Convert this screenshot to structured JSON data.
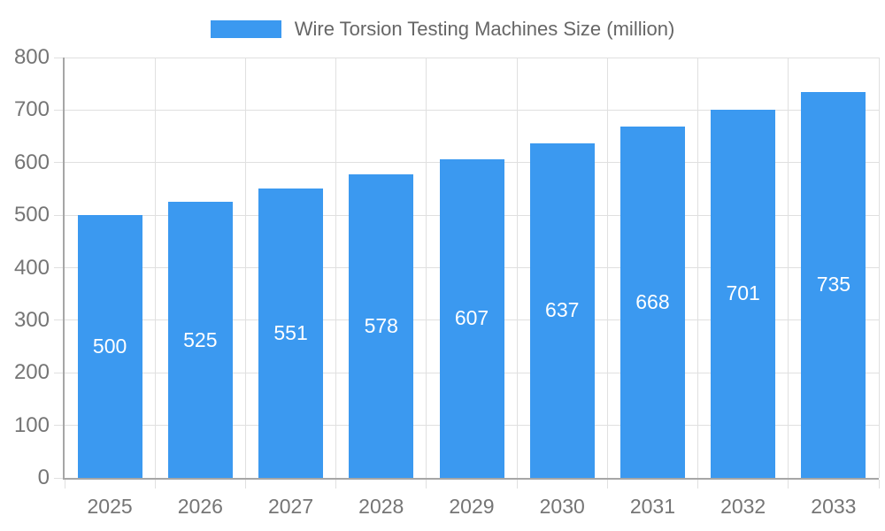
{
  "legend": {
    "label": "Wire Torsion Testing Machines Size (million)"
  },
  "chart_data": {
    "type": "bar",
    "title": "",
    "xlabel": "",
    "ylabel": "",
    "categories": [
      "2025",
      "2026",
      "2027",
      "2028",
      "2029",
      "2030",
      "2031",
      "2032",
      "2033"
    ],
    "values": [
      500,
      525,
      551,
      578,
      607,
      637,
      668,
      701,
      735
    ],
    "series": [
      {
        "name": "Wire Torsion Testing Machines Size (million)",
        "values": [
          500,
          525,
          551,
          578,
          607,
          637,
          668,
          701,
          735
        ]
      }
    ],
    "ylim": [
      0,
      800
    ],
    "ytick_interval": 100,
    "yticks": [
      "0",
      "100",
      "200",
      "300",
      "400",
      "500",
      "600",
      "700",
      "800"
    ],
    "grid": true,
    "legend_position": "top-center",
    "value_label_position": "inside-center"
  },
  "colors": {
    "background": "#ffffff",
    "bar": "#3B99F0",
    "grid": "#e0e0e0",
    "axis": "#a6a6a6",
    "tick_label": "#757575",
    "legend_text": "#666666",
    "bar_value_label": "#ffffff"
  }
}
